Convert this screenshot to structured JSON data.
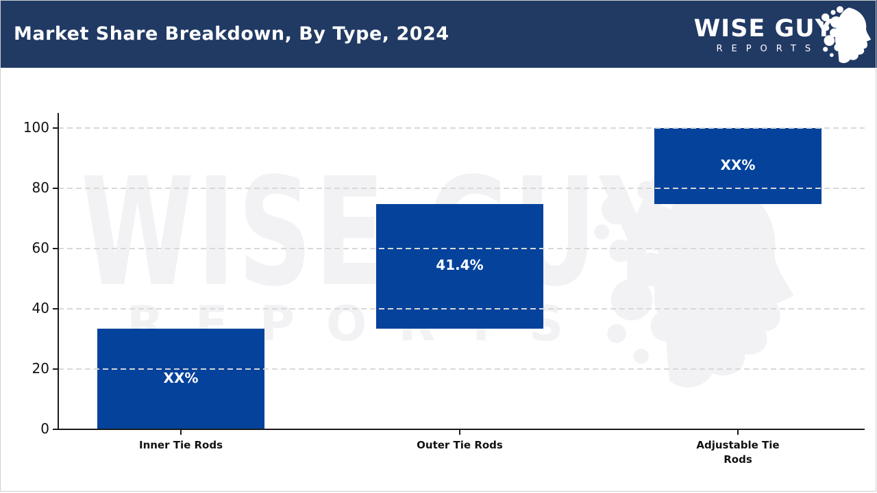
{
  "header": {
    "title": "Market Share Breakdown, By Type, 2024",
    "bg_color": "#213a64",
    "logo": {
      "line1": "WISE GUY",
      "line2": "REPORTS"
    }
  },
  "watermark": {
    "big_text": "WISE GUY",
    "small_text": "REPORTS"
  },
  "chart_data": {
    "type": "bar",
    "subtype": "waterfall",
    "title": "Market Share Breakdown, By Type, 2024",
    "categories": [
      "Inner Tie Rods",
      "Outer Tie Rods",
      "Adjustable Tie Rods"
    ],
    "segments": [
      {
        "category": "Inner Tie Rods",
        "start": 0,
        "end": 33.3,
        "label": "XX%"
      },
      {
        "category": "Outer Tie Rods",
        "start": 33.3,
        "end": 74.7,
        "label": "41.4%"
      },
      {
        "category": "Adjustable Tie Rods",
        "start": 74.7,
        "end": 100,
        "label": "XX%"
      }
    ],
    "xlabel": "",
    "ylabel": "",
    "ylim": [
      0,
      100
    ],
    "yticks": [
      0,
      20,
      40,
      60,
      80,
      100
    ],
    "grid": "horizontal-dashed",
    "legend": "none",
    "bar_color": "#05429b",
    "bar_label_color": "#ffffff",
    "grid_color": "#d8d8d8",
    "axis_color": "#1a1a1a"
  }
}
